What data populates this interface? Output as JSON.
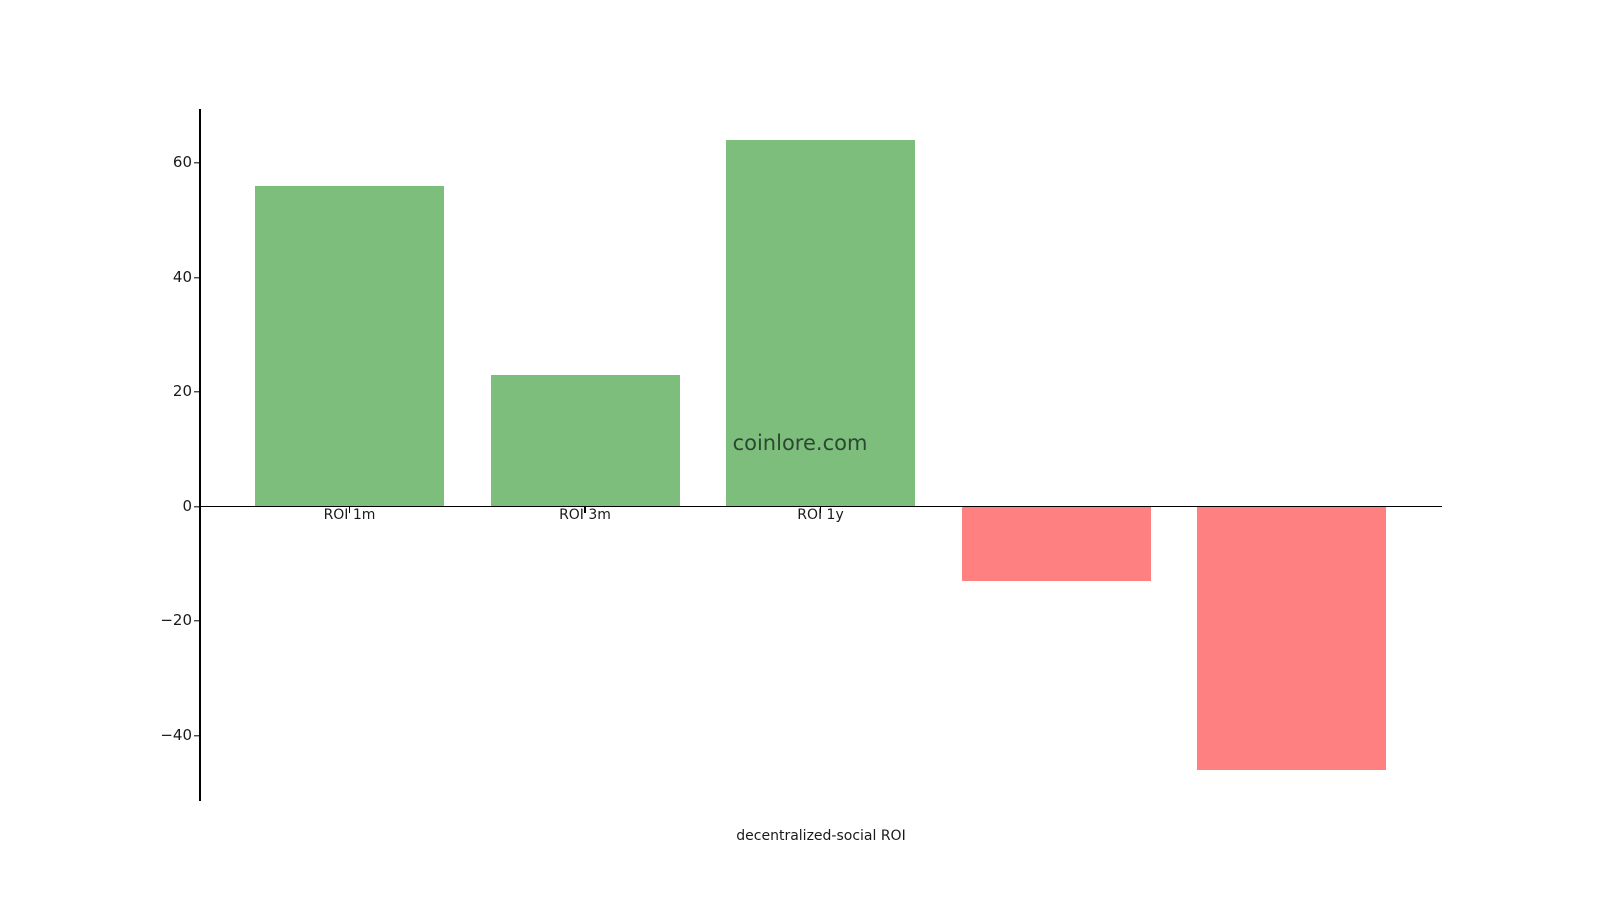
{
  "page": {
    "background": "#ffffff"
  },
  "chart_data": {
    "type": "bar",
    "categories": [
      "ROI 1m",
      "ROI 3m",
      "ROI 1y",
      "",
      ""
    ],
    "values": [
      56,
      23,
      64,
      -13,
      -46
    ],
    "title": "",
    "xlabel": "decentralized-social ROI",
    "ylabel": "",
    "ylim": [
      -51.5,
      69.5
    ],
    "yticks": [
      60,
      40,
      20,
      0,
      -20,
      -40
    ],
    "ytick_labels": [
      "60",
      "40",
      "20",
      "0",
      "−20",
      "−40"
    ],
    "bar_colors": [
      "#7dbe7c",
      "#7dbe7c",
      "#7dbe7c",
      "#ff8080",
      "#ff8080"
    ],
    "positive_color": "#7dbe7c",
    "negative_color": "#ff8080",
    "axis_color": "#000000",
    "tick_label_color": "#1a1a1a",
    "grid": false,
    "legend": false,
    "watermark": {
      "text": "coinlore.com",
      "color": "#2d4832"
    }
  }
}
